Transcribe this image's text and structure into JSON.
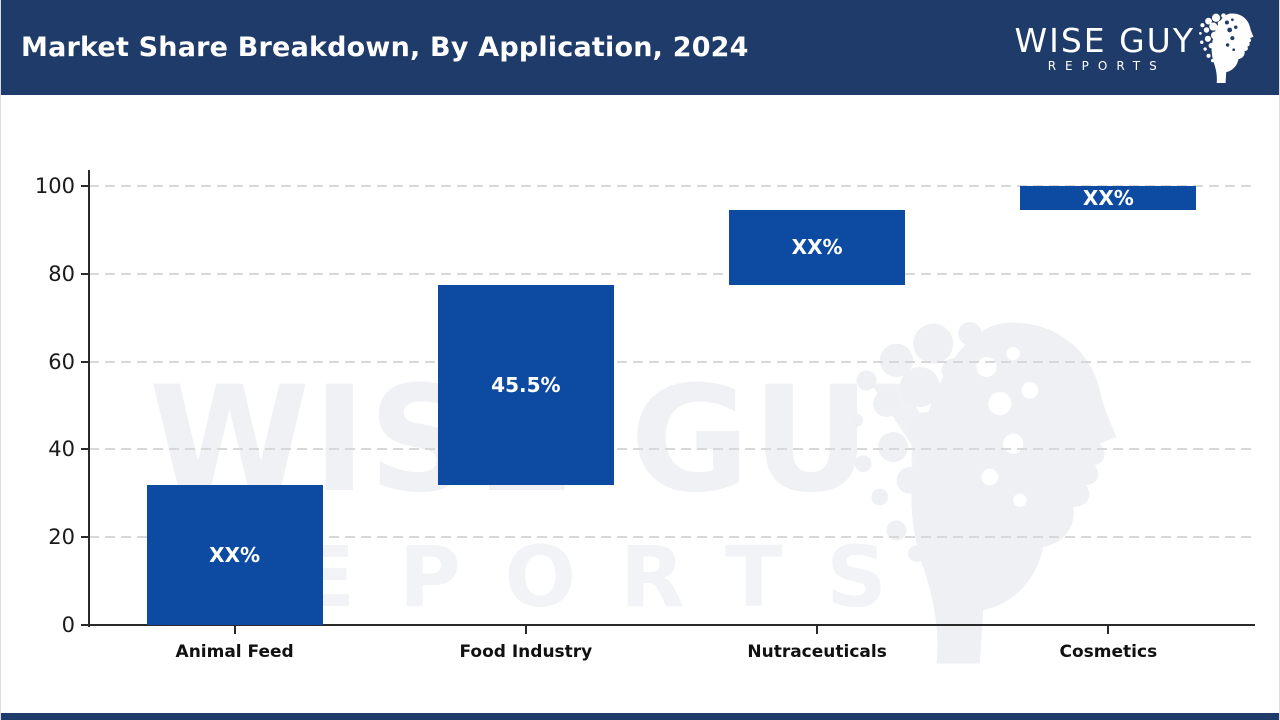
{
  "header": {
    "title": "Market Share Breakdown, By Application, 2024",
    "logo": {
      "line1": "WISE GUY",
      "line2": "REPORTS"
    },
    "bg_color": "#1f3b69"
  },
  "watermark": {
    "line1": "WISE GUY",
    "line2": "REPORTS"
  },
  "chart_data": {
    "type": "bar",
    "subtype": "waterfall",
    "title": "Market Share Breakdown, By Application, 2024",
    "categories": [
      "Animal Feed",
      "Food Industry",
      "Nutraceuticals",
      "Cosmetics"
    ],
    "segments": [
      {
        "category": "Animal Feed",
        "start": 0,
        "end": 32,
        "value": 32,
        "label": "XX%"
      },
      {
        "category": "Food Industry",
        "start": 32,
        "end": 77.5,
        "value": 45.5,
        "label": "45.5%"
      },
      {
        "category": "Nutraceuticals",
        "start": 77.5,
        "end": 94.5,
        "value": 17,
        "label": "XX%"
      },
      {
        "category": "Cosmetics",
        "start": 94.5,
        "end": 100,
        "value": 5.5,
        "label": "XX%"
      }
    ],
    "y_ticks": [
      0,
      20,
      40,
      60,
      80,
      100
    ],
    "y_tick_labels": [
      "0",
      "20",
      "40",
      "60",
      "80",
      "100"
    ],
    "ylim": [
      0,
      105
    ],
    "xlabel": "",
    "ylabel": "",
    "bar_color": "#0d4ba3",
    "grid": "horizontal-dashed",
    "legend": "none"
  }
}
